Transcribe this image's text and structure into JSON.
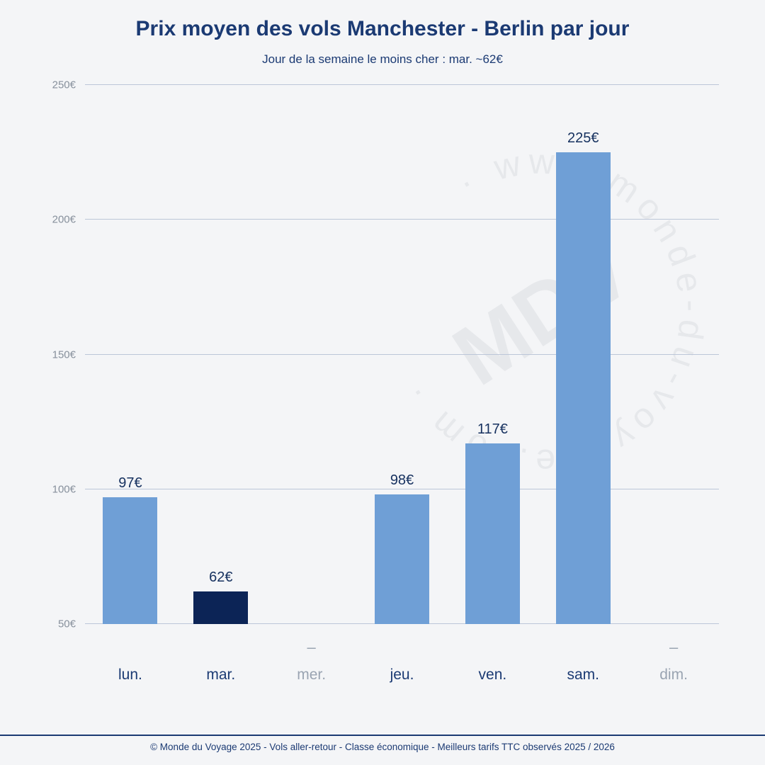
{
  "header": {
    "title": "Prix moyen des vols Manchester - Berlin par jour",
    "subtitle": "Jour de la semaine le moins cher : mar. ~62€"
  },
  "chart_data": {
    "type": "bar",
    "title": "Prix moyen des vols Manchester - Berlin par jour",
    "subtitle": "Jour de la semaine le moins cher : mar. ~62€",
    "categories": [
      "lun.",
      "mar.",
      "mer.",
      "jeu.",
      "ven.",
      "sam.",
      "dim."
    ],
    "values": [
      97,
      62,
      null,
      98,
      117,
      225,
      null
    ],
    "value_labels": [
      "97€",
      "62€",
      "–",
      "98€",
      "117€",
      "225€",
      "–"
    ],
    "highlight_index": 1,
    "xlabel": "",
    "ylabel": "",
    "ylim": [
      50,
      250
    ],
    "yticks": [
      50,
      100,
      150,
      200,
      250
    ],
    "ytick_labels": [
      "50€",
      "100€",
      "150€",
      "200€",
      "250€"
    ],
    "grid": "on",
    "legend": "none",
    "colors": {
      "bar": "#6f9fd6",
      "bar_highlight": "#0c2456",
      "grid": "#bcc6d8",
      "label": "#1b3a73",
      "muted": "#9aa4b2",
      "tick": "#87909c",
      "background": "#f4f5f7"
    }
  },
  "watermark": {
    "circle_text": "· www.monde-du-voyage.com ·",
    "center_text": "MDV"
  },
  "footer": {
    "text": "© Monde du Voyage 2025 - Vols aller-retour - Classe économique - Meilleurs tarifs TTC observés 2025 / 2026"
  }
}
